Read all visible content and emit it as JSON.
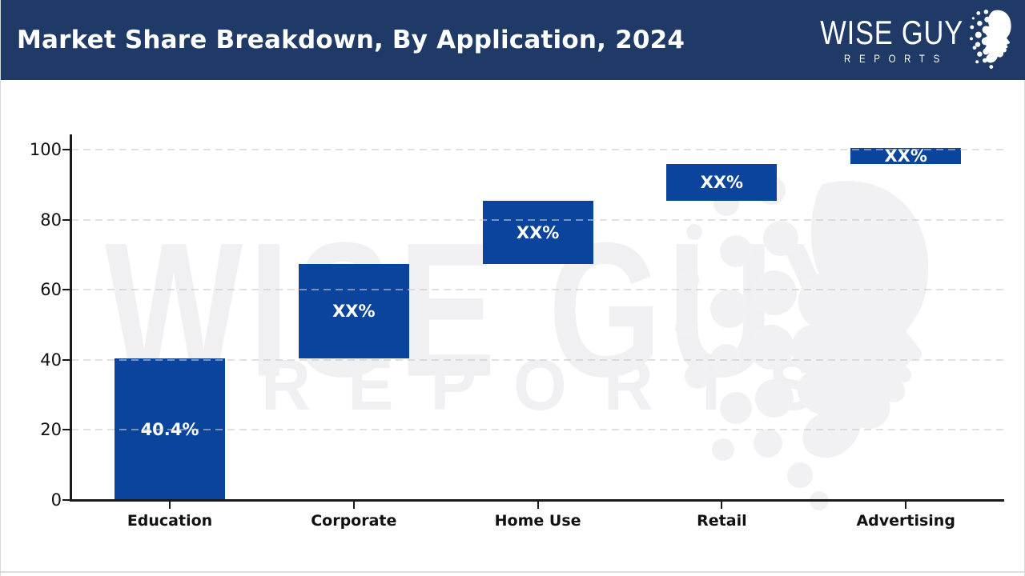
{
  "header": {
    "title": "Market Share Breakdown, By Application, 2024",
    "logo": {
      "line1": "WISE GUY",
      "line2": "REPORTS"
    }
  },
  "watermark": {
    "line1": "WISE GUY",
    "line2": "REPORTS"
  },
  "colors": {
    "header_bg": "#203a68",
    "bar": "#0a449c",
    "bar_label": "#ffffff",
    "axis": "#1a1a1a",
    "grid": "#d9d9d9",
    "watermark": "#f0f0f2"
  },
  "chart_data": {
    "type": "bar",
    "subtype": "waterfall",
    "title": "Market Share Breakdown, By Application, 2024",
    "categories": [
      "Education",
      "Corporate",
      "Home Use",
      "Retail",
      "Advertising"
    ],
    "segments": [
      {
        "category": "Education",
        "start": 0,
        "end": 40.4,
        "label": "40.4%"
      },
      {
        "category": "Corporate",
        "start": 40.4,
        "end": 67.3,
        "label": "XX%"
      },
      {
        "category": "Home Use",
        "start": 67.3,
        "end": 85.3,
        "label": "XX%"
      },
      {
        "category": "Retail",
        "start": 85.3,
        "end": 95.9,
        "label": "XX%"
      },
      {
        "category": "Advertising",
        "start": 95.9,
        "end": 100.4,
        "label": "XX%"
      }
    ],
    "xlabel": "",
    "ylabel": "",
    "yticks": [
      0,
      20,
      40,
      60,
      80,
      100
    ],
    "ylim": [
      0,
      104
    ],
    "grid": "horizontal-dashed",
    "legend": "none"
  }
}
